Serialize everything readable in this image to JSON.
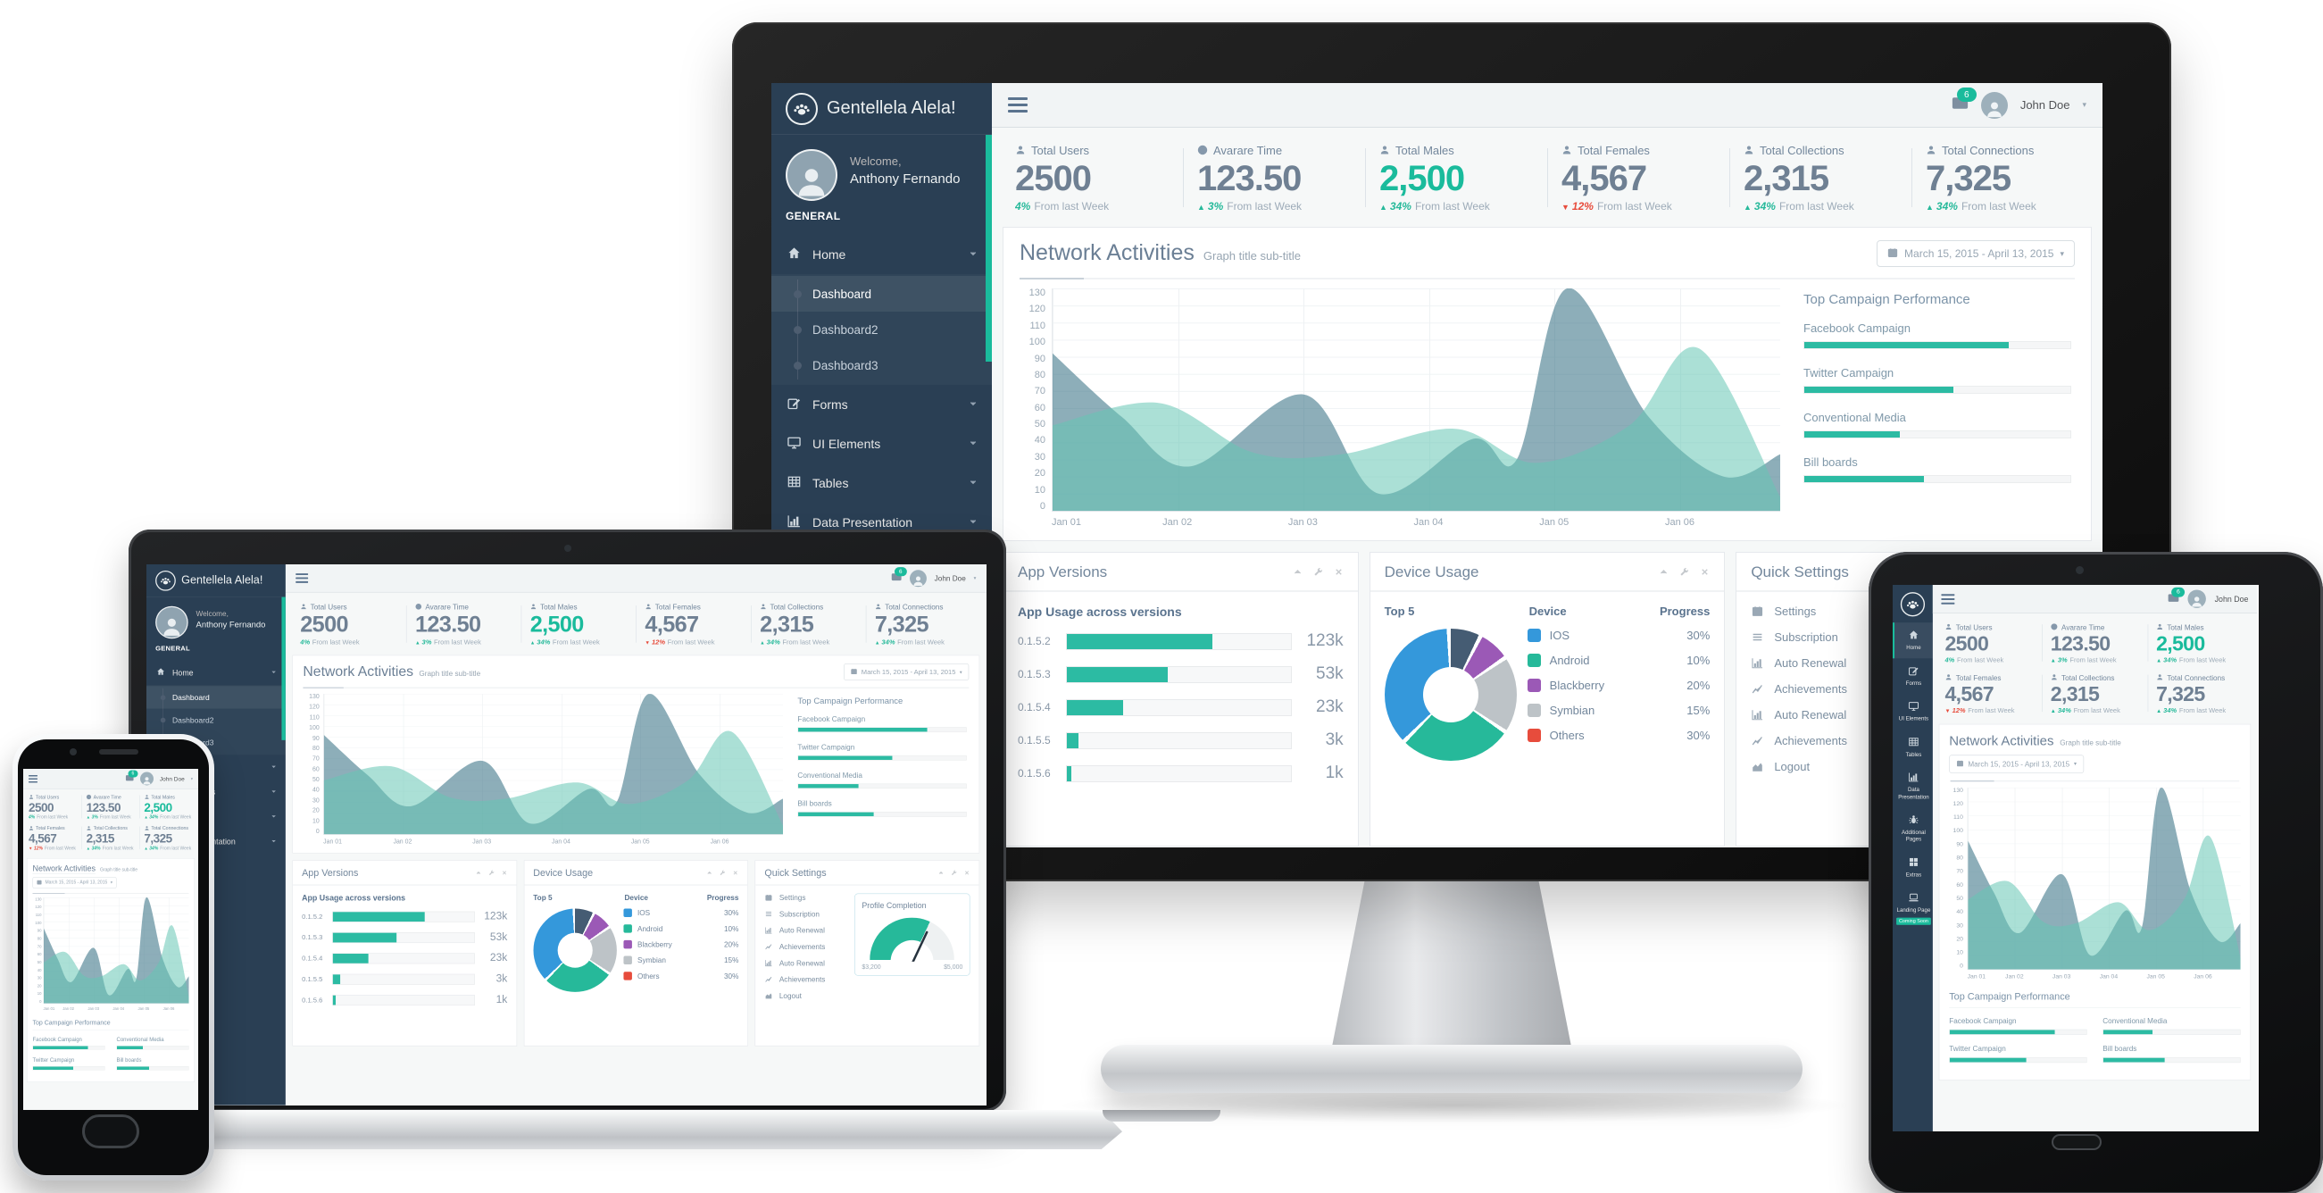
{
  "brand": {
    "name": "Gentellela Alela!"
  },
  "sidebar_profile": {
    "welcome": "Welcome,",
    "name": "Anthony Fernando",
    "section": "GENERAL"
  },
  "topnav": {
    "user": "John Doe",
    "mail_badge": "6"
  },
  "menu": {
    "items": [
      {
        "icon": "home",
        "label": "Home",
        "children": [
          "Dashboard",
          "Dashboard2",
          "Dashboard3"
        ],
        "active_child": "Dashboard"
      },
      {
        "icon": "edit",
        "label": "Forms"
      },
      {
        "icon": "desktop",
        "label": "UI Elements"
      },
      {
        "icon": "table",
        "label": "Tables"
      },
      {
        "icon": "chart-bar",
        "label": "Data Presentation"
      }
    ]
  },
  "tablet_menu": [
    {
      "icon": "home",
      "label": "Home"
    },
    {
      "icon": "edit",
      "label": "Forms"
    },
    {
      "icon": "desktop",
      "label": "UI Elements"
    },
    {
      "icon": "table",
      "label": "Tables"
    },
    {
      "icon": "chart-bar",
      "label": "Data Presentation"
    },
    {
      "icon": "bug",
      "label": "Additional Pages"
    },
    {
      "icon": "windows",
      "label": "Extras"
    },
    {
      "icon": "laptop",
      "label": "Landing Page",
      "badge": "Coming Soon"
    }
  ],
  "stats": [
    {
      "icon": "user",
      "label": "Total Users",
      "value": "2500",
      "dir": "flat",
      "delta": "4%",
      "note": "From last Week"
    },
    {
      "icon": "clock",
      "label": "Avarare Time",
      "value": "123.50",
      "dir": "up",
      "delta": "3%",
      "note": "From last Week"
    },
    {
      "icon": "user",
      "label": "Total Males",
      "value": "2,500",
      "vcls": "accent",
      "dir": "up",
      "delta": "34%",
      "note": "From last Week"
    },
    {
      "icon": "user",
      "label": "Total Females",
      "value": "4,567",
      "dir": "down",
      "delta": "12%",
      "note": "From last Week"
    },
    {
      "icon": "user",
      "label": "Total Collections",
      "value": "2,315",
      "dir": "up",
      "delta": "34%",
      "note": "From last Week"
    },
    {
      "icon": "user",
      "label": "Total Connections",
      "value": "7,325",
      "dir": "up",
      "delta": "34%",
      "note": "From last Week"
    }
  ],
  "network": {
    "title": "Network Activities",
    "subtitle": "Graph title sub-title",
    "date_range": "March 15, 2015 - April 13, 2015"
  },
  "chart_data": {
    "type": "area",
    "title": "Network Activities",
    "xlabel": "",
    "ylabel": "",
    "x_categories": [
      "Jan 01",
      "Jan 02",
      "Jan 03",
      "Jan 04",
      "Jan 05",
      "Jan 06"
    ],
    "x_range": [
      0,
      5.8
    ],
    "ylim": [
      0,
      130
    ],
    "yticks": [
      130,
      120,
      110,
      100,
      90,
      80,
      70,
      60,
      50,
      40,
      30,
      20,
      10,
      0
    ],
    "grid": true,
    "legend": false,
    "series": [
      {
        "name": "activity-dark",
        "color": "#2f6b80",
        "opacity": 0.55,
        "x": [
          0,
          0.55,
          1.1,
          2,
          2.6,
          3.35,
          3.7,
          4.1,
          4.75,
          5.35,
          5.8
        ],
        "y": [
          92,
          55,
          26,
          68,
          10,
          42,
          30,
          130,
          55,
          20,
          33
        ]
      },
      {
        "name": "activity-light",
        "color": "#66c7b4",
        "opacity": 0.55,
        "x": [
          0,
          0.85,
          1.6,
          2.3,
          3.2,
          3.85,
          4.6,
          5.15,
          5.8
        ],
        "y": [
          50,
          63,
          34,
          33,
          48,
          28,
          50,
          95,
          8
        ]
      }
    ],
    "tick_pos": [
      {
        "label": "Jan 01",
        "pos": 0
      },
      {
        "label": "Jan 02",
        "pos": 17.24
      },
      {
        "label": "Jan 03",
        "pos": 34.48
      },
      {
        "label": "Jan 04",
        "pos": 51.72
      },
      {
        "label": "Jan 05",
        "pos": 68.97
      },
      {
        "label": "Jan 06",
        "pos": 86.21
      }
    ]
  },
  "campaigns": {
    "title": "Top Campaign Performance",
    "items": [
      {
        "label": "Facebook Campaign",
        "pct": 77
      },
      {
        "label": "Twitter Campaign",
        "pct": 56
      },
      {
        "label": "Conventional Media",
        "pct": 36
      },
      {
        "label": "Bill boards",
        "pct": 45
      }
    ]
  },
  "app_versions": {
    "title": "App Versions",
    "subtitle": "App Usage across versions",
    "rows": [
      {
        "version": "0.1.5.2",
        "pct": 65,
        "value": "123k"
      },
      {
        "version": "0.1.5.3",
        "pct": 45,
        "value": "53k"
      },
      {
        "version": "0.1.5.4",
        "pct": 25,
        "value": "23k"
      },
      {
        "version": "0.1.5.5",
        "pct": 5,
        "value": "3k"
      },
      {
        "version": "0.1.5.6",
        "pct": 2,
        "value": "1k"
      }
    ]
  },
  "device_usage": {
    "title": "Device Usage",
    "top5": "Top 5",
    "col_device": "Device",
    "col_progress": "Progress",
    "legend": [
      {
        "label": "IOS",
        "pct": "30%",
        "color": "#3498DB"
      },
      {
        "label": "Android",
        "pct": "10%",
        "color": "#26B99A"
      },
      {
        "label": "Blackberry",
        "pct": "20%",
        "color": "#9B59B6"
      },
      {
        "label": "Symbian",
        "pct": "15%",
        "color": "#BDC3C7"
      },
      {
        "label": "Others",
        "pct": "30%",
        "color": "#E74C3C"
      }
    ],
    "donut": [
      {
        "color": "#455C73",
        "pct": 7
      },
      {
        "color": "#ffffff",
        "pct": 1
      },
      {
        "color": "#9B59B6",
        "pct": 7
      },
      {
        "color": "#ffffff",
        "pct": 1
      },
      {
        "color": "#BDC3C7",
        "pct": 18
      },
      {
        "color": "#ffffff",
        "pct": 1
      },
      {
        "color": "#26B99A",
        "pct": 27
      },
      {
        "color": "#ffffff",
        "pct": 1
      },
      {
        "color": "#3498DB",
        "pct": 36
      },
      {
        "color": "#ffffff",
        "pct": 1
      }
    ]
  },
  "quick_settings": {
    "title": "Quick Settings",
    "items": [
      {
        "icon": "calendar",
        "label": "Settings"
      },
      {
        "icon": "list",
        "label": "Subscription"
      },
      {
        "icon": "chart-bar",
        "label": "Auto Renewal"
      },
      {
        "icon": "chart-line",
        "label": "Achievements"
      },
      {
        "icon": "chart-bar",
        "label": "Auto Renewal"
      },
      {
        "icon": "chart-line",
        "label": "Achievements"
      },
      {
        "icon": "chart-area",
        "label": "Logout"
      }
    ],
    "gauge": {
      "title": "Profile Completion",
      "min": "$3,200",
      "max": "$5,000",
      "pct": 64
    }
  },
  "accent_colors": {
    "teal": "#1ABB9C",
    "navy": "#2A3F54",
    "green": "#26B99A",
    "red": "#E74C3C"
  }
}
